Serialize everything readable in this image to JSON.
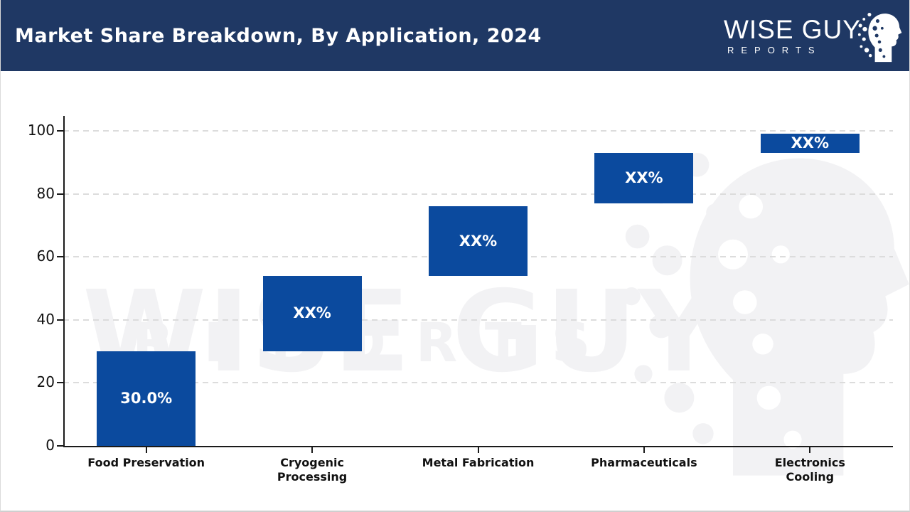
{
  "header": {
    "title": "Market Share Breakdown, By Application, 2024",
    "logo": {
      "line1": "WISE GUY",
      "line2": "REPORTS"
    }
  },
  "watermark": {
    "line1": "WISE GUY",
    "line2": "REPORTS"
  },
  "colors": {
    "header_bg": "#1f3864",
    "bar": "#0b4a9e",
    "bar_label": "#ffffff",
    "grid": "#dcdcdc",
    "axis": "#1a1a1a",
    "tick_text": "#111111",
    "watermark": "#f2f2f4"
  },
  "chart_data": {
    "type": "bar",
    "subtype": "waterfall-floating-bars",
    "title": "Market Share Breakdown, By Application, 2024",
    "categories": [
      "Food Preservation",
      "Cryogenic\nProcessing",
      "Metal Fabrication",
      "Pharmaceuticals",
      "Electronics\nCooling"
    ],
    "segments": [
      {
        "category": "Food Preservation",
        "start": 0,
        "end": 30,
        "label": "30.0%"
      },
      {
        "category": "Cryogenic Processing",
        "start": 30,
        "end": 54,
        "label": "XX%"
      },
      {
        "category": "Metal Fabrication",
        "start": 54,
        "end": 76,
        "label": "XX%"
      },
      {
        "category": "Pharmaceuticals",
        "start": 77,
        "end": 93,
        "label": "XX%"
      },
      {
        "category": "Electronics Cooling",
        "start": 93,
        "end": 99,
        "label": "XX%"
      }
    ],
    "xlabel": "",
    "ylabel": "",
    "ylim": [
      0,
      100
    ],
    "yticks": [
      0,
      20,
      40,
      60,
      80,
      100
    ],
    "grid": "horizontal-dashed",
    "legend": null
  }
}
